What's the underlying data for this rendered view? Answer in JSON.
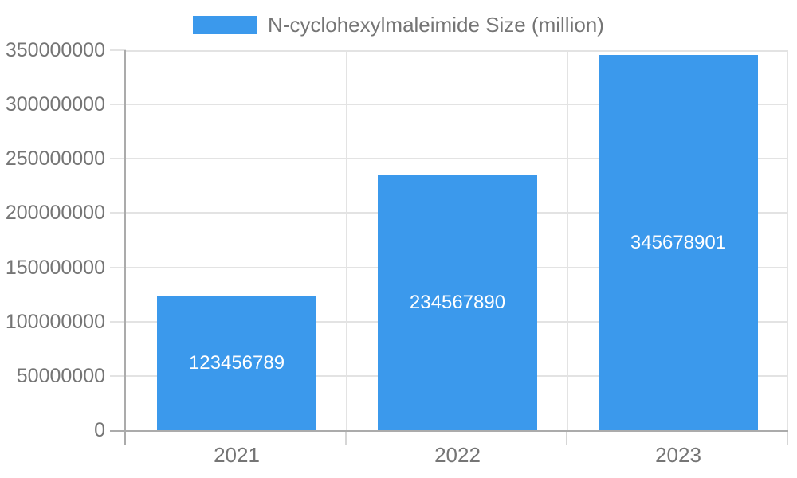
{
  "legend": {
    "label": "N-cyclohexylmaleimide Size (million)"
  },
  "chart_data": {
    "type": "bar",
    "title": "N-cyclohexylmaleimide Size (million)",
    "categories": [
      "2021",
      "2022",
      "2023"
    ],
    "values": [
      123456789,
      234567890,
      345678901
    ],
    "bar_value_labels": [
      "123456789",
      "234567890",
      "345678901"
    ],
    "series": [
      {
        "name": "N-cyclohexylmaleimide Size (million)",
        "values": [
          123456789,
          234567890,
          345678901
        ]
      }
    ],
    "xlabel": "",
    "ylabel": "",
    "ylim": [
      0,
      350000000
    ],
    "y_ticks": [
      0,
      50000000,
      100000000,
      150000000,
      200000000,
      250000000,
      300000000,
      350000000
    ],
    "grid": true,
    "legend_position": "top",
    "colors": {
      "bar": "#3b99ec",
      "tick_text": "#757575",
      "legend_text": "#757575",
      "grid": "#e3e3e3",
      "axis": "#ababab",
      "minor_tick": "#d6d6d6",
      "bar_label_text": "#ffffff",
      "background": "#ffffff"
    }
  }
}
